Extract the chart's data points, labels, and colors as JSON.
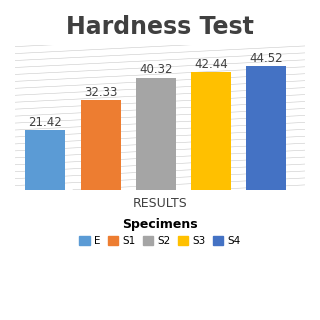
{
  "title": "Hardness Test",
  "categories": [
    "E",
    "S1",
    "S2",
    "S3",
    "S4"
  ],
  "values": [
    21.42,
    32.33,
    40.32,
    42.44,
    44.52
  ],
  "bar_colors": [
    "#5B9BD5",
    "#ED7D31",
    "#A5A5A5",
    "#FFC000",
    "#4472C4"
  ],
  "xlabel": "RESULTS",
  "legend_title": "Specimens",
  "legend_labels": [
    "E",
    "S1",
    "S2",
    "S3",
    "S4"
  ],
  "legend_colors": [
    "#5B9BD5",
    "#ED7D31",
    "#A5A5A5",
    "#FFC000",
    "#4472C4"
  ],
  "ylim": [
    0,
    52
  ],
  "background_color": "#FFFFFF",
  "plot_bg": "#DCDCDC",
  "title_fontsize": 17,
  "value_fontsize": 8.5
}
